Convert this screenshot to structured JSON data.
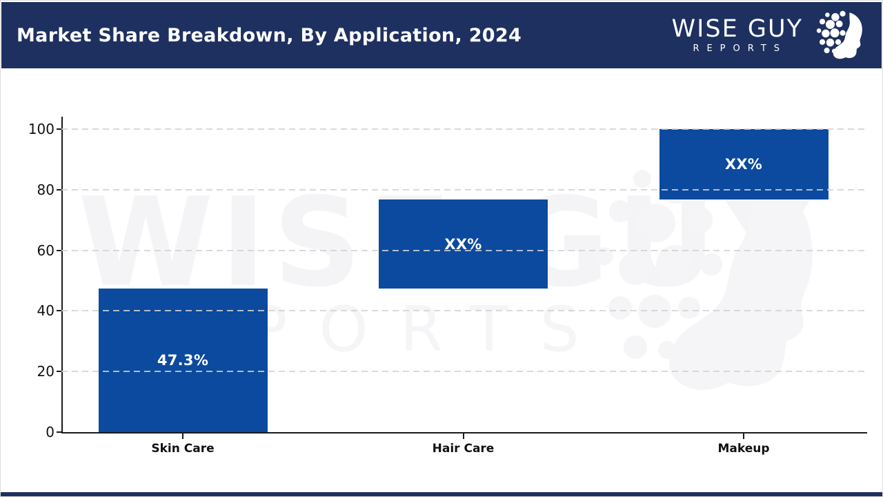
{
  "header": {
    "title": "Market Share Breakdown, By Application, 2024",
    "logo": {
      "line1": "WISE GUY",
      "line2": "REPORTS"
    }
  },
  "watermark": {
    "line1": "WISE GUY",
    "line2": "REPORTS"
  },
  "chart_data": {
    "type": "bar",
    "subtype": "floating-segment (waterfall-style market share)",
    "title": "Market Share Breakdown, By Application, 2024",
    "categories": [
      "Skin Care",
      "Hair Care",
      "Makeup"
    ],
    "segments": [
      {
        "category": "Skin Care",
        "start": 0,
        "end": 47.3,
        "label": "47.3%"
      },
      {
        "category": "Hair Care",
        "start": 47.3,
        "end": 76.8,
        "label": "XX%"
      },
      {
        "category": "Makeup",
        "start": 76.8,
        "end": 100,
        "label": "XX%"
      }
    ],
    "xlabel": "",
    "ylabel": "",
    "ylim": [
      0,
      105
    ],
    "yticks": [
      0,
      20,
      40,
      60,
      80,
      100
    ],
    "ytick_labels": [
      "0",
      "20",
      "40",
      "60",
      "80",
      "100"
    ],
    "grid": "horizontal dashed",
    "legend": "none",
    "bar_color": "#0B4A9E",
    "label_color": "#ffffff"
  },
  "colors": {
    "header_bg": "#1E3060",
    "bar_blue": "#0B4A9E",
    "grid_gray": "#d2d2d4",
    "axis_black": "#1a1a1a",
    "watermark_gray": "#f4f4f6",
    "bottom_bar": "#1E3060"
  }
}
